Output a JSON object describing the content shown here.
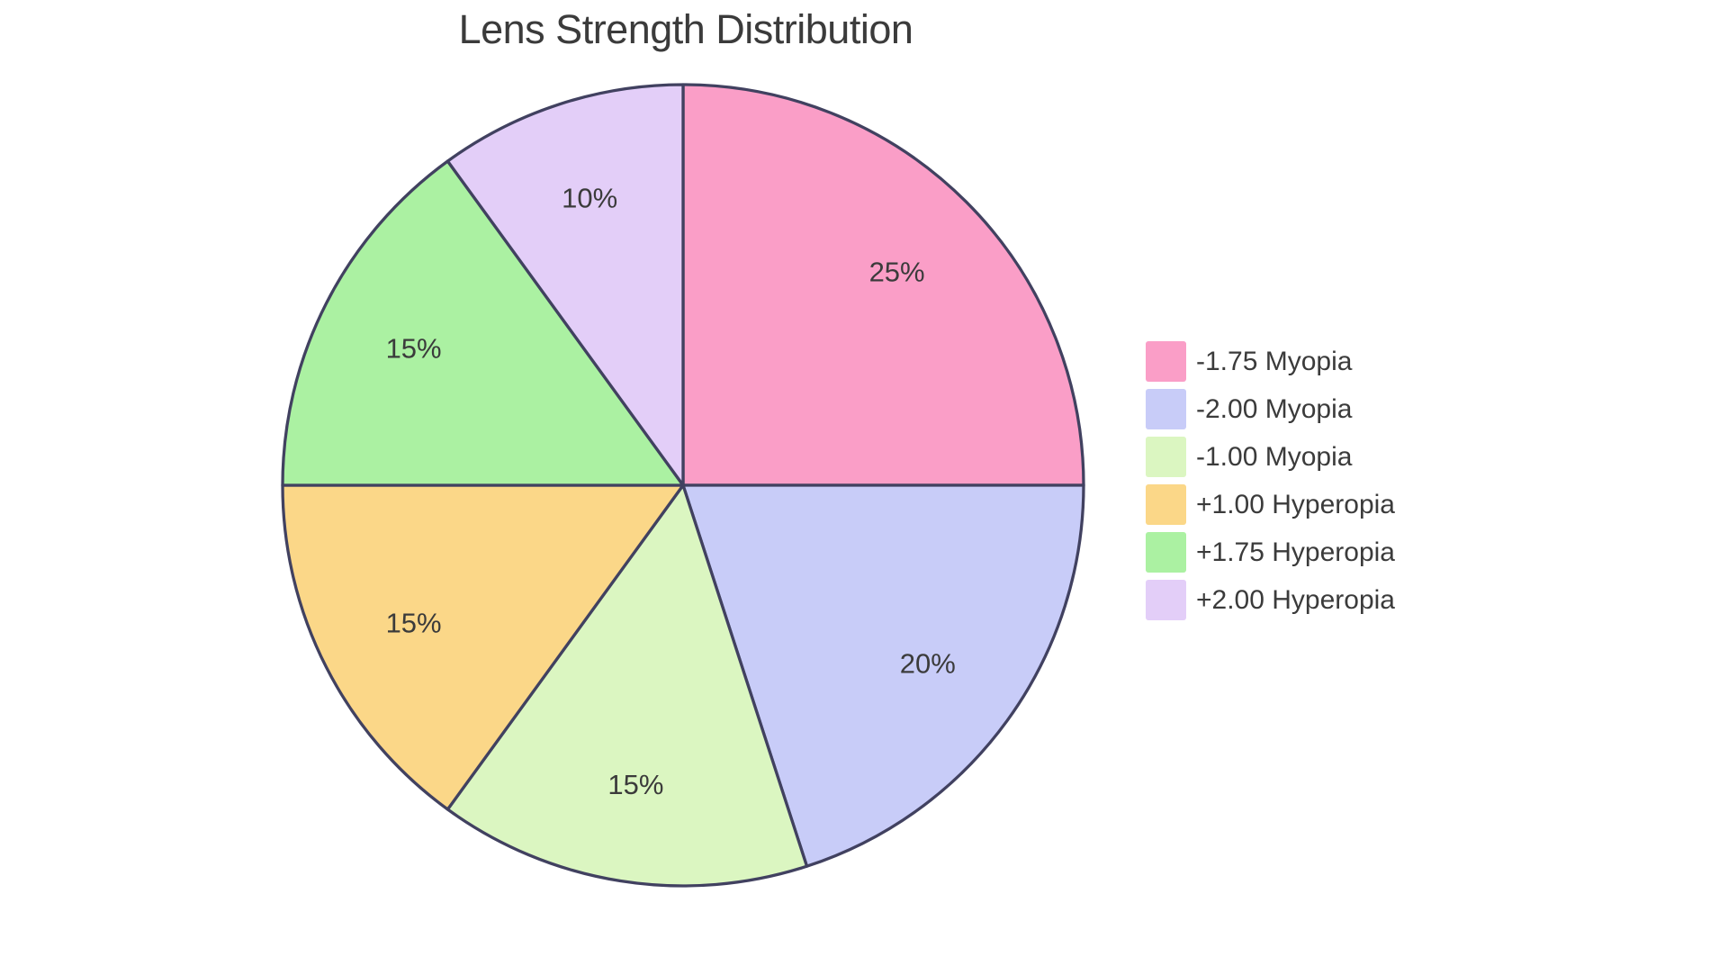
{
  "figure": {
    "background": "#FFFFFF",
    "text_color": "#3B3B3B"
  },
  "chart_data": {
    "type": "pie",
    "title": "Lens Strength Distribution",
    "labels": [
      "-1.75 Myopia",
      "-2.00 Myopia",
      "-1.00 Myopia",
      "+1.00 Hyperopia",
      "+1.75 Hyperopia",
      "+2.00 Hyperopia"
    ],
    "values": [
      25,
      20,
      15,
      15,
      15,
      10
    ],
    "slice_labels": [
      "25%",
      "20%",
      "15%",
      "15%",
      "15%",
      "10%"
    ],
    "colors": [
      "#FA9EC7",
      "#C8CCF8",
      "#DBF6C1",
      "#FBD788",
      "#ABF1A2",
      "#E3CEF8"
    ],
    "edge_color": "#414160",
    "text_color": "#3B3B3B",
    "start_angle_deg": 90,
    "direction": "clockwise",
    "legend_position": "center-right",
    "grid": false
  }
}
